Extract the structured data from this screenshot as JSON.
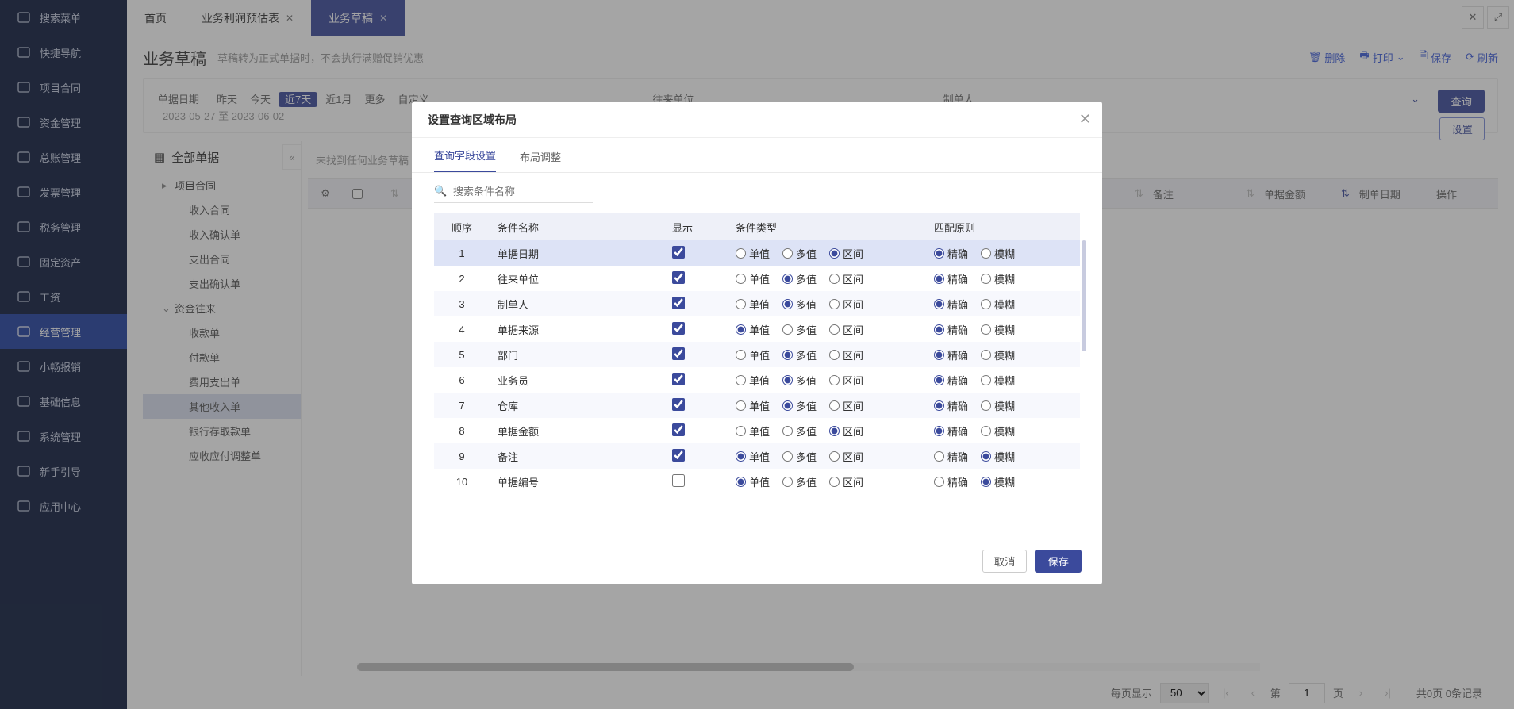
{
  "leftNav": [
    {
      "icon": "search",
      "label": "搜索菜单"
    },
    {
      "icon": "bolt",
      "label": "快捷导航"
    },
    {
      "icon": "doc",
      "label": "项目合同"
    },
    {
      "icon": "coin",
      "label": "资金管理"
    },
    {
      "icon": "book",
      "label": "总账管理"
    },
    {
      "icon": "invoice",
      "label": "发票管理"
    },
    {
      "icon": "tax",
      "label": "税务管理"
    },
    {
      "icon": "asset",
      "label": "固定资产"
    },
    {
      "icon": "salary",
      "label": "工资"
    },
    {
      "icon": "biz",
      "label": "经营管理",
      "active": true
    },
    {
      "icon": "report",
      "label": "小畅报销"
    },
    {
      "icon": "base",
      "label": "基础信息"
    },
    {
      "icon": "sys",
      "label": "系统管理"
    },
    {
      "icon": "guide",
      "label": "新手引导"
    },
    {
      "icon": "apps",
      "label": "应用中心"
    }
  ],
  "tabs": [
    {
      "label": "首页",
      "closable": false
    },
    {
      "label": "业务利润预估表",
      "closable": true
    },
    {
      "label": "业务草稿",
      "closable": true,
      "active": true
    }
  ],
  "page": {
    "title": "业务草稿",
    "subtitle": "草稿转为正式单据时，不会执行满赠促销优惠",
    "actions": [
      {
        "icon": "trash",
        "label": "删除"
      },
      {
        "icon": "print",
        "label": "打印",
        "chev": true
      },
      {
        "icon": "save",
        "label": "保存"
      },
      {
        "icon": "refresh",
        "label": "刷新"
      }
    ]
  },
  "filter": {
    "label": "单据日期",
    "chips": [
      "昨天",
      "今天",
      "近7天",
      "近1月",
      "更多",
      "自定义"
    ],
    "activeChip": "近7天",
    "range": "2023-05-27 至 2023-06-02",
    "otherLabels": [
      "往来单位",
      "制单人"
    ],
    "searchLabel": "查询",
    "settingsLabel": "设置"
  },
  "leftPanel": {
    "title": "全部单据",
    "tree": [
      {
        "label": "项目合同",
        "expand": "▸",
        "children": []
      },
      {
        "label": "收入合同",
        "level": 2
      },
      {
        "label": "收入确认单",
        "level": 2
      },
      {
        "label": "支出合同",
        "level": 2
      },
      {
        "label": "支出确认单",
        "level": 2
      },
      {
        "label": "资金往来",
        "expand": "⌄"
      },
      {
        "label": "收款单",
        "level": 2
      },
      {
        "label": "付款单",
        "level": 2
      },
      {
        "label": "费用支出单",
        "level": 2
      },
      {
        "label": "其他收入单",
        "level": 2,
        "selected": true
      },
      {
        "label": "银行存取款单",
        "level": 2
      },
      {
        "label": "应收应付调整单",
        "level": 2
      }
    ]
  },
  "grid": {
    "emptyText": "未找到任何业务草稿",
    "columns": [
      "",
      "",
      "",
      "仓库",
      "备注",
      "单据金额",
      "制单日期",
      "操作"
    ]
  },
  "pagination": {
    "perPageLabel": "每页显示",
    "perPage": "50",
    "pageLabelPrefix": "第",
    "pageLabelSuffix": "页",
    "pageValue": "1",
    "summary": "共0页 0条记录"
  },
  "modal": {
    "title": "设置查询区域布局",
    "tabs": [
      "查询字段设置",
      "布局调整"
    ],
    "activeTab": "查询字段设置",
    "searchPlaceholder": "搜索条件名称",
    "head": {
      "seq": "顺序",
      "name": "条件名称",
      "show": "显示",
      "type": "条件类型",
      "match": "匹配原则"
    },
    "typeOptions": [
      "单值",
      "多值",
      "区间"
    ],
    "matchOptions": [
      "精确",
      "模糊"
    ],
    "rows": [
      {
        "seq": 1,
        "name": "单据日期",
        "show": true,
        "type": "区间",
        "match": "精确",
        "hl": true
      },
      {
        "seq": 2,
        "name": "往来单位",
        "show": true,
        "type": "多值",
        "match": "精确"
      },
      {
        "seq": 3,
        "name": "制单人",
        "show": true,
        "type": "多值",
        "match": "精确"
      },
      {
        "seq": 4,
        "name": "单据来源",
        "show": true,
        "type": "单值",
        "match": "精确"
      },
      {
        "seq": 5,
        "name": "部门",
        "show": true,
        "type": "多值",
        "match": "精确"
      },
      {
        "seq": 6,
        "name": "业务员",
        "show": true,
        "type": "多值",
        "match": "精确"
      },
      {
        "seq": 7,
        "name": "仓库",
        "show": true,
        "type": "多值",
        "match": "精确"
      },
      {
        "seq": 8,
        "name": "单据金额",
        "show": true,
        "type": "区间",
        "match": "精确"
      },
      {
        "seq": 9,
        "name": "备注",
        "show": true,
        "type": "单值",
        "match": "模糊"
      },
      {
        "seq": 10,
        "name": "单据编号",
        "show": false,
        "type": "单值",
        "match": "模糊"
      }
    ],
    "cancel": "取消",
    "save": "保存"
  },
  "colors": {
    "accent": "#3b4a9c"
  }
}
